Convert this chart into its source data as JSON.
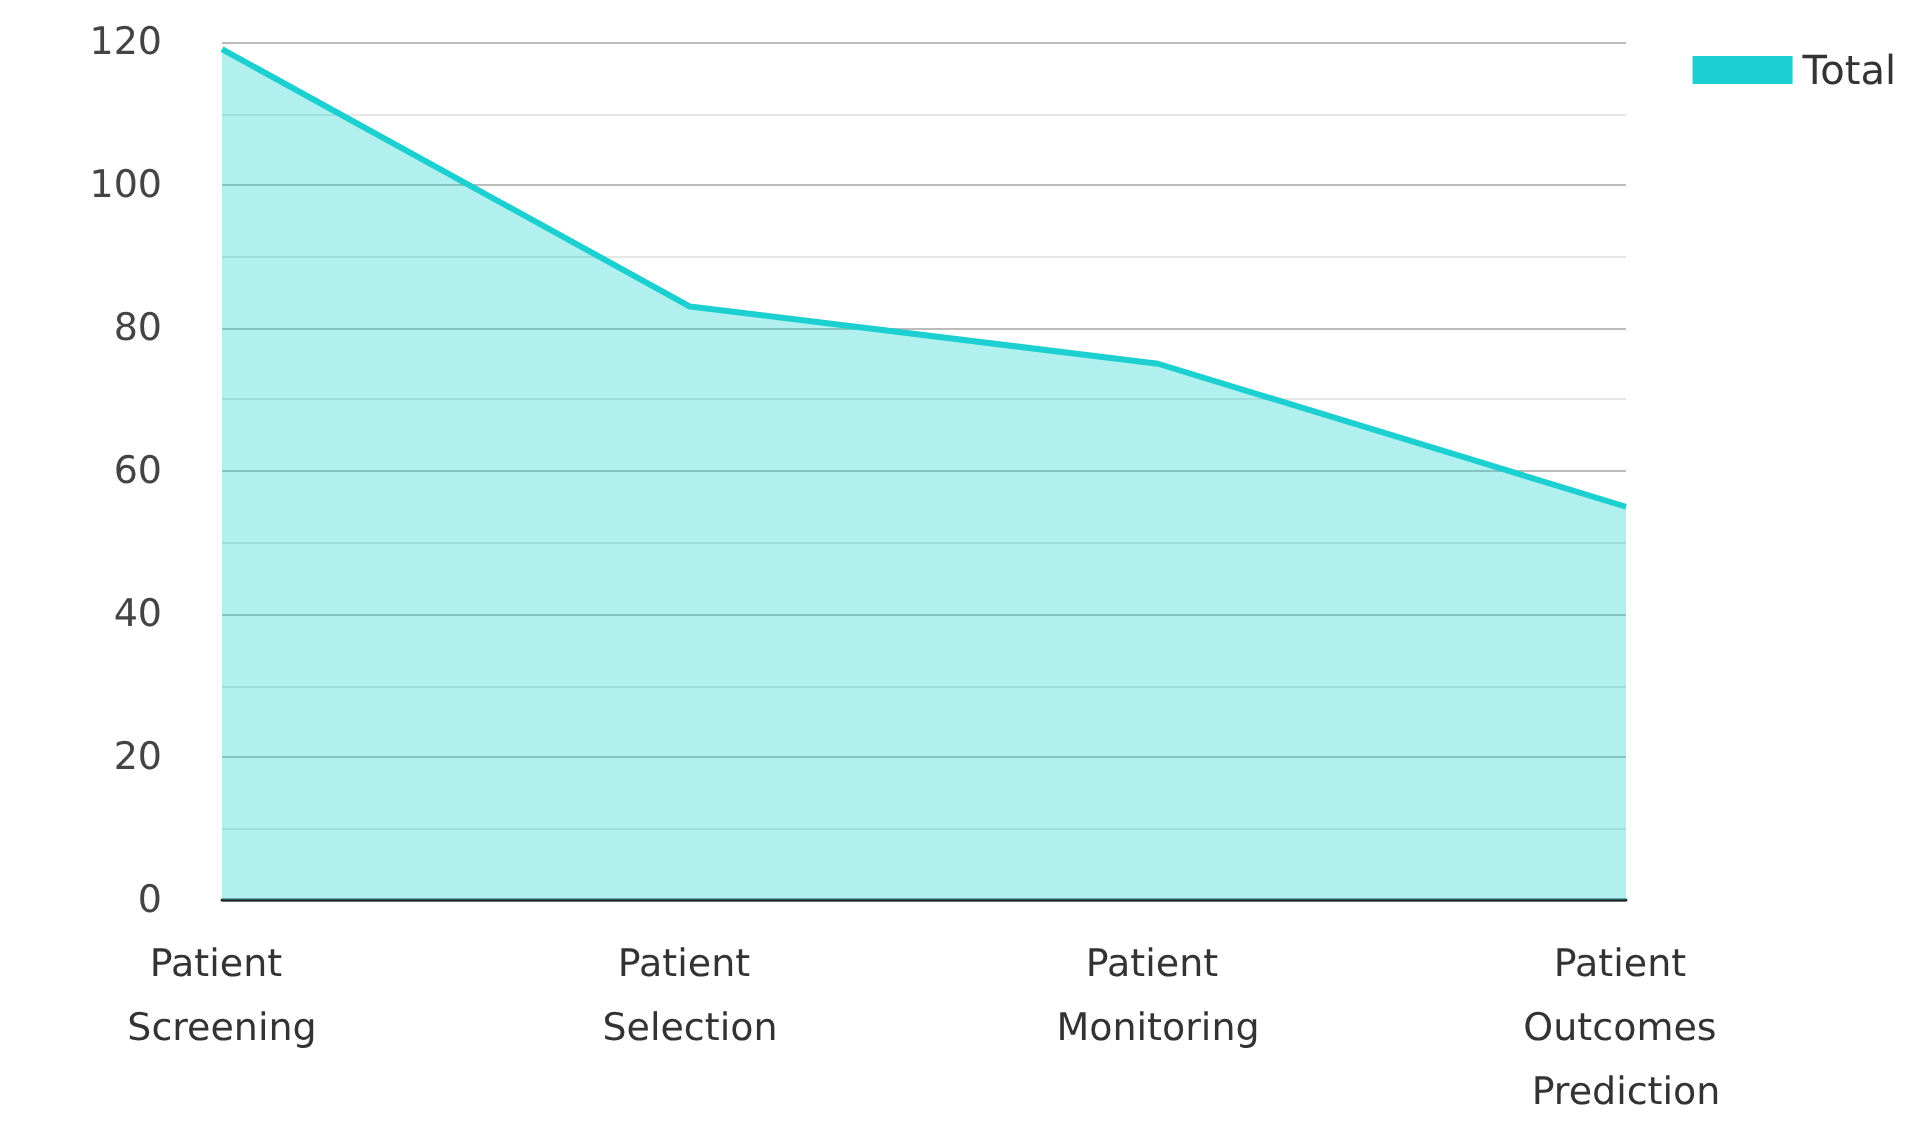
{
  "chart_data": {
    "type": "area",
    "categories": [
      "Patient Screening",
      "Patient Selection",
      "Patient Monitoring",
      "Patient Outcomes Prediction"
    ],
    "series": [
      {
        "name": "Total",
        "color": "#1ccfd0",
        "values": [
          119,
          83,
          75,
          55
        ]
      }
    ],
    "ylim": [
      0,
      120
    ],
    "yticks": [
      0,
      20,
      40,
      60,
      80,
      100,
      120
    ],
    "grid": "y",
    "legend": "top right"
  }
}
